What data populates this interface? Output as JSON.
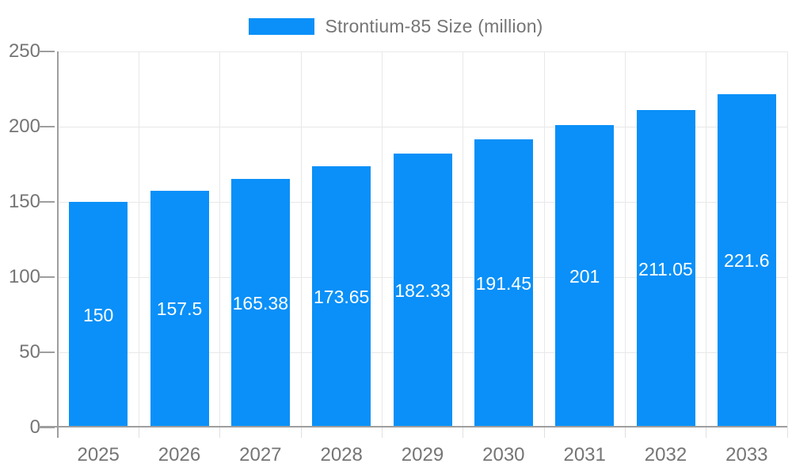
{
  "chart_data": {
    "type": "bar",
    "title": "",
    "legend": {
      "label": "Strontium-85 Size (million)",
      "position": "top"
    },
    "categories": [
      "2025",
      "2026",
      "2027",
      "2028",
      "2029",
      "2030",
      "2031",
      "2032",
      "2033"
    ],
    "values": [
      150,
      157.5,
      165.38,
      173.65,
      182.33,
      191.45,
      201,
      211.05,
      221.6
    ],
    "value_labels": [
      "150",
      "157.5",
      "165.38",
      "173.65",
      "182.33",
      "191.45",
      "201",
      "211.05",
      "221.6"
    ],
    "ylabel": "",
    "xlabel": "",
    "ylim": [
      0,
      250
    ],
    "yticks": [
      0,
      50,
      100,
      150,
      200,
      250
    ],
    "grid": true,
    "colors": {
      "bar": "#0a90f8",
      "value_label": "#ffffff",
      "axis_text": "#757575",
      "axis_line": "#9e9e9e",
      "gridline": "#e8e8e8",
      "background": "#ffffff"
    }
  }
}
